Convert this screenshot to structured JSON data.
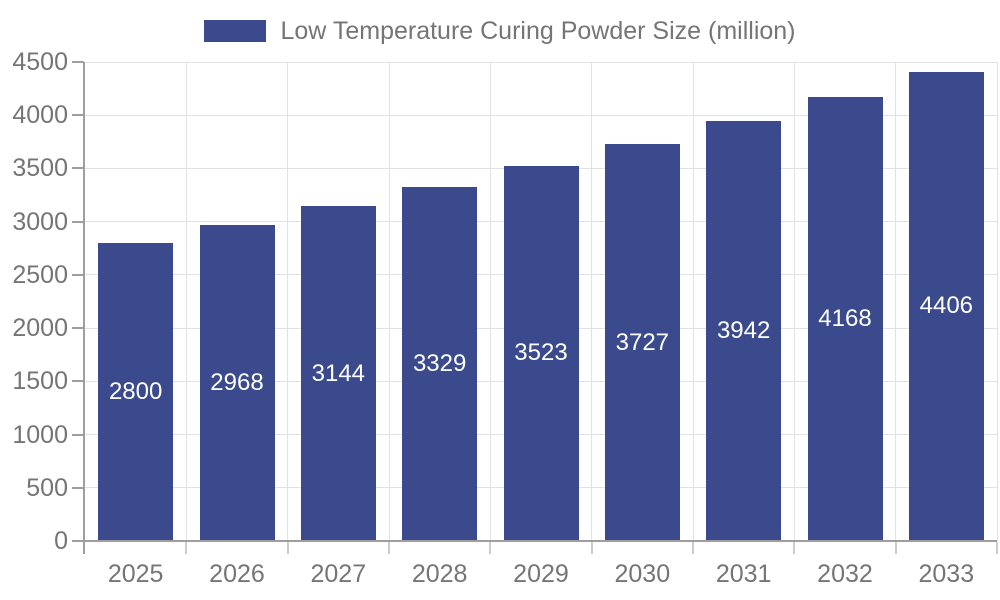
{
  "chart_data": {
    "type": "bar",
    "title": "",
    "series_name": "Low Temperature Curing Powder Size (million)",
    "categories": [
      "2025",
      "2026",
      "2027",
      "2028",
      "2029",
      "2030",
      "2031",
      "2032",
      "2033"
    ],
    "values": [
      2800,
      2968,
      3144,
      3329,
      3523,
      3727,
      3942,
      4168,
      4406
    ],
    "xlabel": "",
    "ylabel": "",
    "ylim": [
      0,
      4500
    ],
    "yticks": [
      0,
      500,
      1000,
      1500,
      2000,
      2500,
      3000,
      3500,
      4000,
      4500
    ],
    "grid": true,
    "legend_position": "top-center",
    "value_label_position": "inside-center",
    "colors": {
      "bar": "#3A4A8C",
      "value_label": "#FFFFFF",
      "axis_text": "#757575",
      "legend_text": "#757575",
      "gridline": "#E2E2E2",
      "axis_line": "#9E9E9E",
      "x_tick": "#CCCCCC",
      "background": "#FFFFFF"
    }
  }
}
